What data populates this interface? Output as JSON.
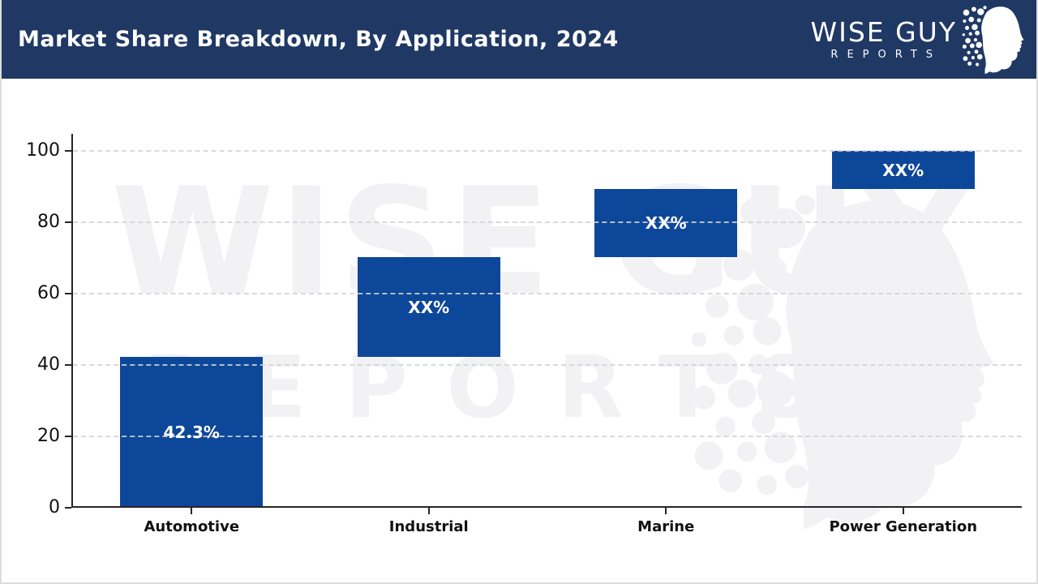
{
  "header": {
    "title": "Market Share Breakdown, By Application, 2024",
    "bg_color": "#1F3864",
    "logo": {
      "line1": "WISE GUY",
      "line2": "REPORTS"
    }
  },
  "watermark": {
    "line1": "WISE GUY",
    "line2": "REPORTS"
  },
  "chart_data": {
    "type": "bar",
    "subtype": "floating-segment-waterfall",
    "title": "Market Share Breakdown, By Application, 2024",
    "categories": [
      "Automotive",
      "Industrial",
      "Marine",
      "Power Generation"
    ],
    "segments": [
      {
        "category": "Automotive",
        "start": 0,
        "end": 42.3,
        "label": "42.3%"
      },
      {
        "category": "Industrial",
        "start": 42.3,
        "end": 70.2,
        "label": "XX%"
      },
      {
        "category": "Marine",
        "start": 70.2,
        "end": 89.3,
        "label": "XX%"
      },
      {
        "category": "Power Generation",
        "start": 89.3,
        "end": 100,
        "label": "XX%"
      }
    ],
    "yticks": [
      0,
      20,
      40,
      60,
      80,
      100
    ],
    "ylim": [
      0,
      104.8
    ],
    "xlabel": "",
    "ylabel": "",
    "grid": true,
    "grid_style": "dashed",
    "legend": "none",
    "bar_color": "#0D4799",
    "label_color": "#FFFFFF",
    "axis_color": "#262626"
  }
}
